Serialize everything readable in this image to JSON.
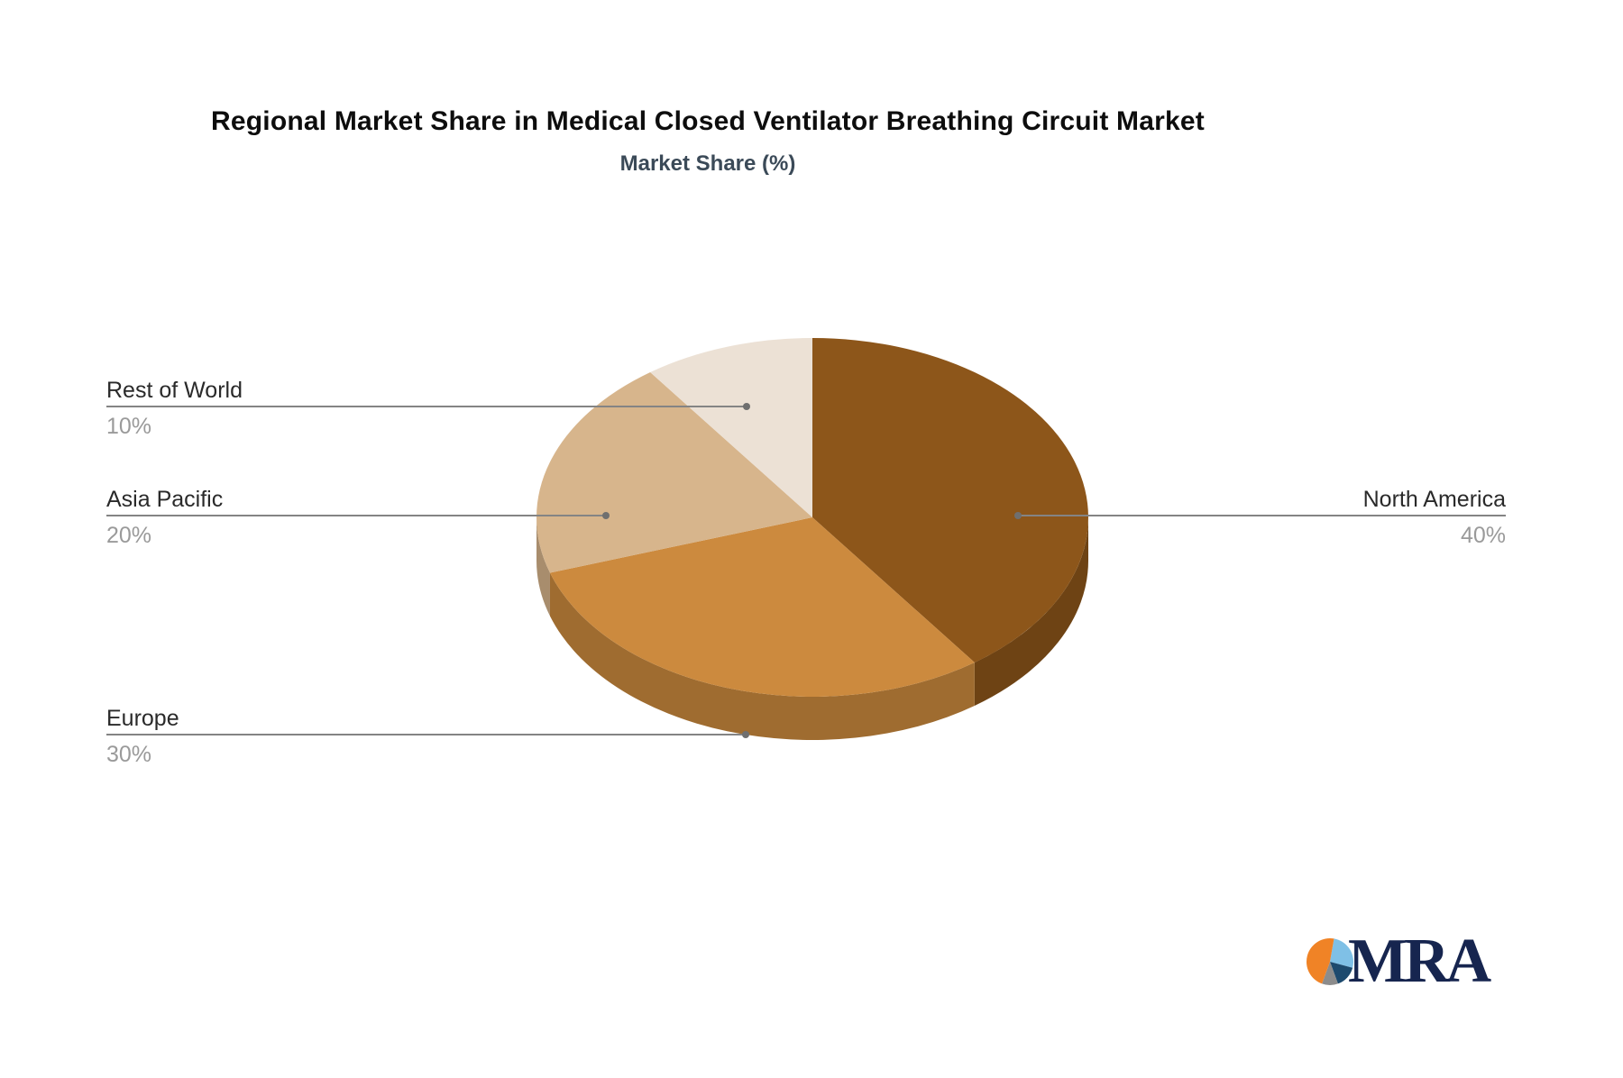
{
  "chart_data": {
    "type": "pie",
    "title": "Regional Market Share in Medical Closed Ventilator Breathing Circuit Market",
    "subtitle": "Market Share (%)",
    "unit": "%",
    "effect": "3d",
    "start_angle_deg": 0,
    "direction": "clockwise",
    "legend_position": "none",
    "slices": [
      {
        "label": "North America",
        "value": 40,
        "value_label": "40%",
        "color": "#8d561a",
        "label_side": "right"
      },
      {
        "label": "Europe",
        "value": 30,
        "value_label": "30%",
        "color": "#cc8a3e",
        "label_side": "left"
      },
      {
        "label": "Asia Pacific",
        "value": 20,
        "value_label": "20%",
        "color": "#d7b58c",
        "label_side": "left"
      },
      {
        "label": "Rest of World",
        "value": 10,
        "value_label": "10%",
        "color": "#ece1d5",
        "label_side": "left"
      }
    ]
  },
  "styles": {
    "title_color": "#0d0d0d",
    "subtitle_color": "#3b4a58",
    "label_name_color": "#2a2a2a",
    "label_value_color": "#9a9a9a",
    "leader_line_color": "#848484",
    "leader_dot_color": "#6f6f6f",
    "background_color": "#ffffff"
  },
  "logo": {
    "text": "MRA",
    "text_color": "#16254f",
    "icon_colors": {
      "orange": "#f08326",
      "light_blue": "#7fc0e6",
      "navy": "#1d4a6e",
      "gray": "#8c8c8c"
    }
  }
}
